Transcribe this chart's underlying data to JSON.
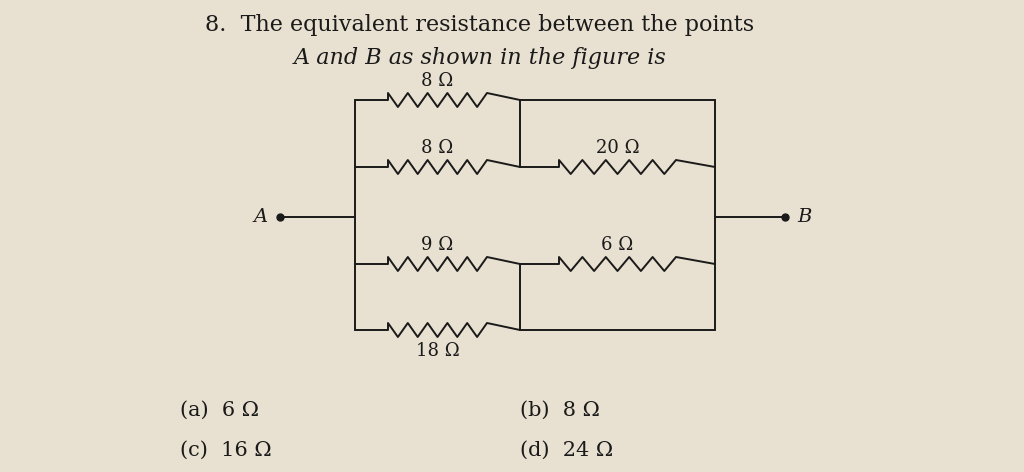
{
  "title_line1": "8.  The equivalent resistance between the points",
  "title_line2": "A and B as shown in the figure is",
  "bg_color": "#e8e0d0",
  "wire_color": "#1a1a1a",
  "text_color": "#1a1a1a",
  "options": [
    "(a)  6 Ω",
    "(b)  8 Ω",
    "(c)  16 Ω",
    "(d)  24 Ω"
  ],
  "resistor_labels": [
    "8 Ω",
    "8 Ω",
    "9 Ω",
    "18 Ω",
    "20 Ω",
    "6 Ω"
  ],
  "font_size_title": 16,
  "font_size_labels": 13,
  "font_size_options": 15
}
